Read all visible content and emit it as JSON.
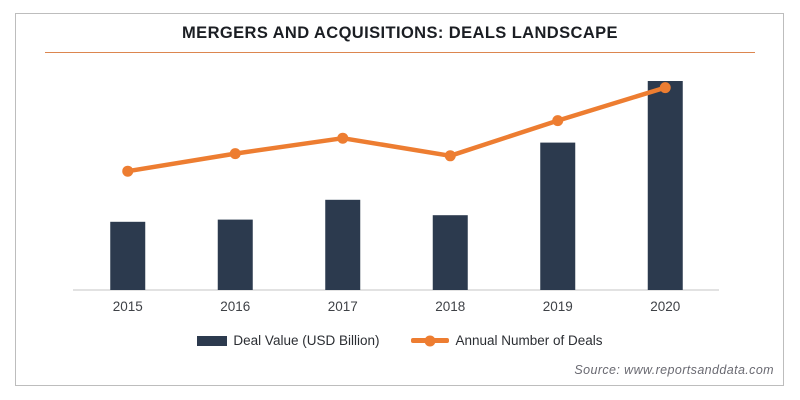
{
  "title": "MERGERS AND ACQUISITIONS: DEALS LANDSCAPE",
  "source": "Source: www.reportsanddata.com",
  "colors": {
    "bar": "#2C3A4E",
    "line": "#ED7D31",
    "title_underline": "#DC864F",
    "axis_line": "#D8D8D8",
    "axis_text": "#3F4247",
    "card_border": "#BDBDBD",
    "title_text": "#1B1E23",
    "legend_text": "#2B2E33",
    "source_text": "#6A6A72"
  },
  "chart_data": {
    "type": "bar",
    "subtype": "combo-bar-line",
    "title": "MERGERS AND ACQUISITIONS: DEALS LANDSCAPE",
    "categories": [
      "2015",
      "2016",
      "2017",
      "2018",
      "2019",
      "2020"
    ],
    "series": [
      {
        "name": "Deal Value (USD Billion)",
        "type": "bar",
        "color": "#2C3A4E",
        "values": [
          31,
          32,
          41,
          34,
          67,
          95
        ]
      },
      {
        "name": "Annual Number of Deals",
        "type": "line",
        "color": "#ED7D31",
        "values": [
          54,
          62,
          69,
          61,
          77,
          92
        ]
      }
    ],
    "xlabel": "",
    "ylabel": "",
    "ylim": [
      0,
      100
    ],
    "grid": false,
    "value_axis_visible": false,
    "legend_position": "bottom",
    "note": "No numeric value axis is shown in the figure; series values are relative estimates (0-100 = fraction of plot height)."
  }
}
